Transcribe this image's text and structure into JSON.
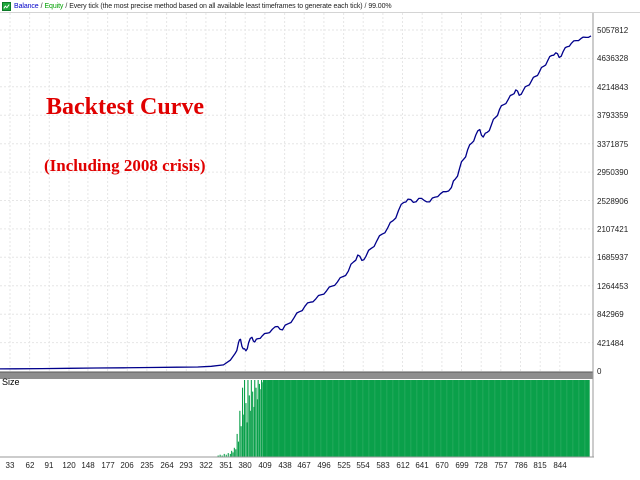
{
  "topbar": {
    "balance_label": "Balance",
    "equity_label": "Equity",
    "slash": "/",
    "method_text": "Every tick (the most precise method based on all available least timeframes to generate each tick)",
    "quality_text": "99.00%",
    "balance_color": "#0000C8",
    "equity_color": "#00A000"
  },
  "annotations": {
    "title": "Backtest Curve",
    "subtitle": "(Including 2008 crisis)",
    "color": "#E00000"
  },
  "size_panel": {
    "label": "Size"
  },
  "chart_data": {
    "type": "line",
    "title": "Backtest Curve (Including 2008 crisis)",
    "series_name": "Balance/Equity",
    "line_color": "#00008B",
    "bar_color": "#0AA04A",
    "grid_color": "#E6E6E6",
    "separator_color": "#8E8E8E",
    "ylim": [
      0,
      5057812
    ],
    "xlim": [
      0,
      893
    ],
    "y_ticks": [
      5057812,
      4636328,
      4214843,
      3793359,
      3371875,
      2950390,
      2528906,
      2107421,
      1685937,
      1264453,
      842969,
      421484,
      0
    ],
    "x_ticks": [
      33,
      62,
      91,
      120,
      148,
      177,
      206,
      235,
      264,
      293,
      322,
      351,
      380,
      409,
      438,
      467,
      496,
      525,
      554,
      583,
      612,
      641,
      670,
      699,
      728,
      757,
      786,
      815,
      844
    ],
    "equity_points": [
      [
        0,
        30000
      ],
      [
        40,
        33000
      ],
      [
        80,
        36000
      ],
      [
        120,
        40000
      ],
      [
        160,
        44000
      ],
      [
        200,
        48000
      ],
      [
        240,
        52000
      ],
      [
        280,
        56000
      ],
      [
        310,
        60000
      ],
      [
        330,
        70000
      ],
      [
        348,
        90000
      ],
      [
        358,
        160000
      ],
      [
        365,
        260000
      ],
      [
        370,
        420000
      ],
      [
        373,
        470000
      ],
      [
        377,
        330000
      ],
      [
        381,
        300000
      ],
      [
        385,
        420000
      ],
      [
        390,
        500000
      ],
      [
        394,
        430000
      ],
      [
        399,
        480000
      ],
      [
        405,
        520000
      ],
      [
        412,
        560000
      ],
      [
        420,
        620000
      ],
      [
        428,
        660000
      ],
      [
        435,
        610000
      ],
      [
        443,
        700000
      ],
      [
        452,
        790000
      ],
      [
        460,
        880000
      ],
      [
        468,
        960000
      ],
      [
        476,
        1020000
      ],
      [
        484,
        1070000
      ],
      [
        492,
        1130000
      ],
      [
        500,
        1190000
      ],
      [
        508,
        1260000
      ],
      [
        516,
        1320000
      ],
      [
        524,
        1400000
      ],
      [
        532,
        1480000
      ],
      [
        540,
        1620000
      ],
      [
        546,
        1720000
      ],
      [
        552,
        1640000
      ],
      [
        558,
        1700000
      ],
      [
        566,
        1820000
      ],
      [
        574,
        1930000
      ],
      [
        582,
        2030000
      ],
      [
        590,
        2120000
      ],
      [
        598,
        2230000
      ],
      [
        606,
        2380000
      ],
      [
        614,
        2500000
      ],
      [
        620,
        2550000
      ],
      [
        628,
        2500000
      ],
      [
        636,
        2560000
      ],
      [
        644,
        2530000
      ],
      [
        652,
        2510000
      ],
      [
        660,
        2580000
      ],
      [
        668,
        2630000
      ],
      [
        676,
        2660000
      ],
      [
        684,
        2720000
      ],
      [
        690,
        2850000
      ],
      [
        696,
        3000000
      ],
      [
        702,
        3140000
      ],
      [
        708,
        3280000
      ],
      [
        714,
        3380000
      ],
      [
        720,
        3500000
      ],
      [
        726,
        3580000
      ],
      [
        731,
        3470000
      ],
      [
        737,
        3540000
      ],
      [
        743,
        3650000
      ],
      [
        749,
        3760000
      ],
      [
        755,
        3880000
      ],
      [
        761,
        3950000
      ],
      [
        768,
        4030000
      ],
      [
        774,
        4100000
      ],
      [
        779,
        4170000
      ],
      [
        784,
        4090000
      ],
      [
        790,
        4160000
      ],
      [
        796,
        4230000
      ],
      [
        802,
        4300000
      ],
      [
        808,
        4370000
      ],
      [
        814,
        4440000
      ],
      [
        820,
        4520000
      ],
      [
        826,
        4600000
      ],
      [
        832,
        4680000
      ],
      [
        838,
        4720000
      ],
      [
        843,
        4650000
      ],
      [
        849,
        4740000
      ],
      [
        855,
        4810000
      ],
      [
        861,
        4860000
      ],
      [
        868,
        4900000
      ],
      [
        875,
        4930000
      ],
      [
        882,
        4950000
      ],
      [
        890,
        4970000
      ]
    ],
    "lot_bars": {
      "spikes": [
        [
          340,
          0.02
        ],
        [
          343,
          0.03
        ],
        [
          346,
          0.02
        ],
        [
          349,
          0.04
        ],
        [
          352,
          0.03
        ],
        [
          355,
          0.05
        ],
        [
          358,
          0.04
        ],
        [
          360,
          0.08
        ],
        [
          362,
          0.06
        ],
        [
          364,
          0.12
        ],
        [
          366,
          0.1
        ],
        [
          368,
          0.3
        ],
        [
          370,
          0.2
        ],
        [
          372,
          0.6
        ],
        [
          374,
          0.4
        ],
        [
          376,
          0.9
        ],
        [
          377,
          0.55
        ],
        [
          379,
          1.0
        ],
        [
          381,
          0.7
        ],
        [
          383,
          0.45
        ],
        [
          384,
          1.0
        ],
        [
          386,
          0.8
        ],
        [
          388,
          0.6
        ],
        [
          389,
          1.0
        ],
        [
          391,
          0.85
        ],
        [
          393,
          0.65
        ],
        [
          394,
          1.0
        ],
        [
          396,
          0.9
        ],
        [
          398,
          0.75
        ],
        [
          399,
          1.0
        ],
        [
          401,
          0.95
        ],
        [
          403,
          0.88
        ],
        [
          404,
          1.0
        ],
        [
          405,
          0.97
        ]
      ],
      "solid_from": 406,
      "solid_to": 888,
      "solid_height": 1.0
    }
  }
}
